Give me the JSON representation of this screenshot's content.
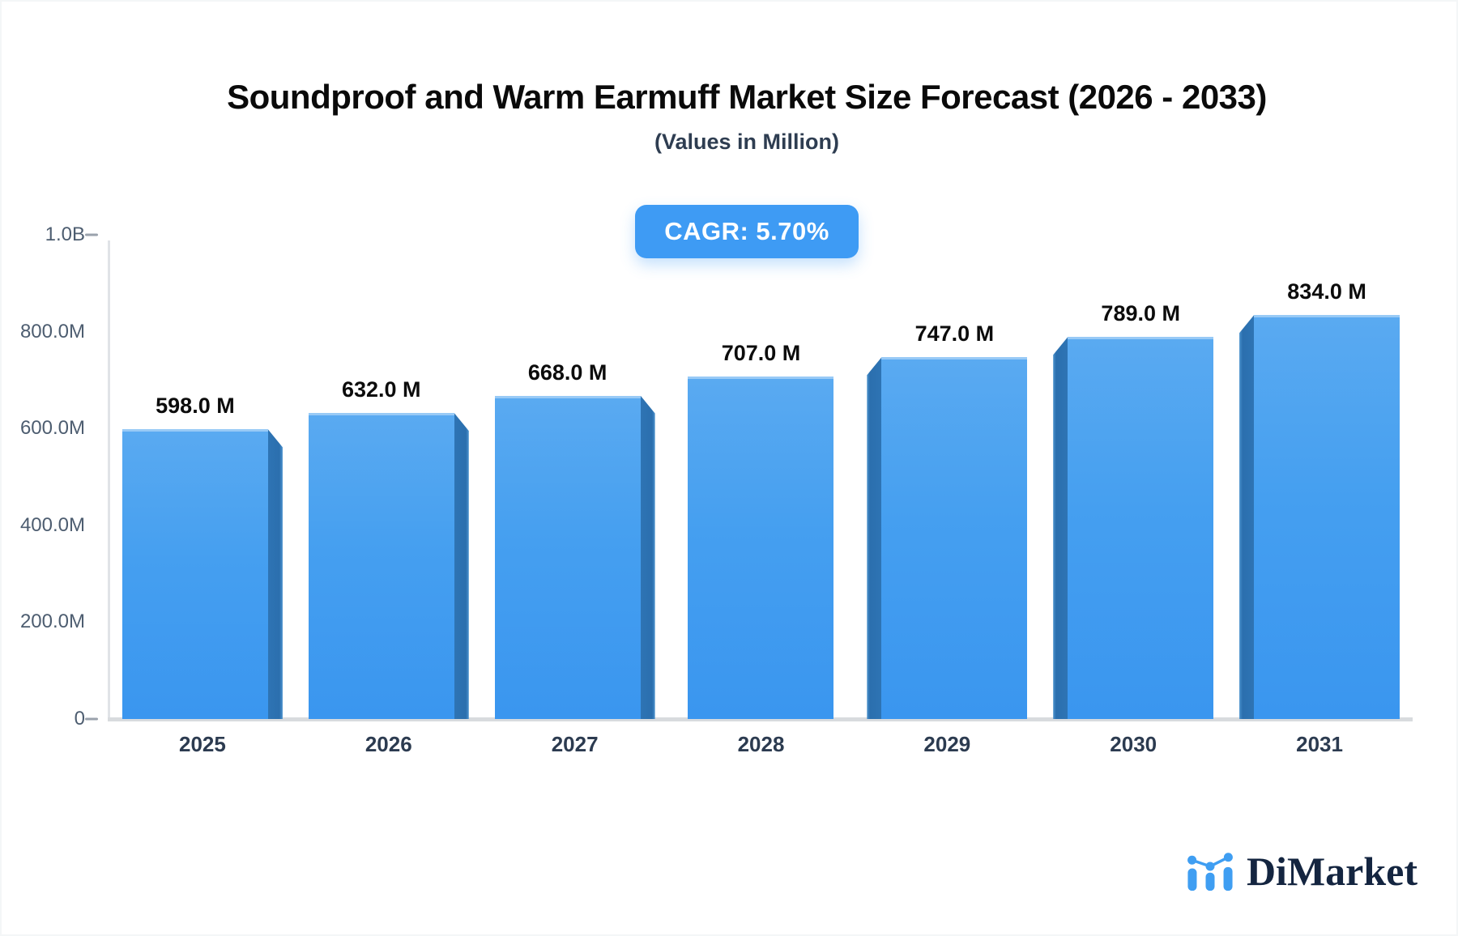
{
  "header": {
    "title": "Soundproof and Warm Earmuff Market Size Forecast (2026 - 2033)",
    "subtitle": "(Values in Million)"
  },
  "badge": {
    "label": "CAGR: 5.70%",
    "bg_color": "#3e9bf4"
  },
  "chart_data": {
    "type": "bar",
    "title": "Soundproof and Warm Earmuff Market Size Forecast (2026 - 2033)",
    "subtitle": "(Values in Million)",
    "cagr_label": "CAGR: 5.70%",
    "categories": [
      "2025",
      "2026",
      "2027",
      "2028",
      "2029",
      "2030",
      "2031"
    ],
    "values": [
      598,
      632,
      668,
      707,
      747,
      789,
      834
    ],
    "value_labels": [
      "598.0 M",
      "632.0 M",
      "668.0 M",
      "707.0 M",
      "747.0 M",
      "789.0 M",
      "834.0 M"
    ],
    "ylim": [
      0,
      1000
    ],
    "yticks": [
      {
        "label": "1.0B",
        "value": 1000
      },
      {
        "label": "800.0M",
        "value": 800
      },
      {
        "label": "600.0M",
        "value": 600
      },
      {
        "label": "400.0M",
        "value": 400
      },
      {
        "label": "200.0M",
        "value": 200
      },
      {
        "label": "0",
        "value": 0
      }
    ],
    "grid": false,
    "legend": false,
    "bar_colors": {
      "face_top": "#5aaaf1",
      "face_bottom": "#3a96ef",
      "side": "#2c72b2"
    }
  },
  "footer": {
    "brand": "DiMarket"
  },
  "colors": {
    "accent_blue": "#3e9bf4",
    "axis_gray": "#d8dbde",
    "navy": "#142540"
  }
}
